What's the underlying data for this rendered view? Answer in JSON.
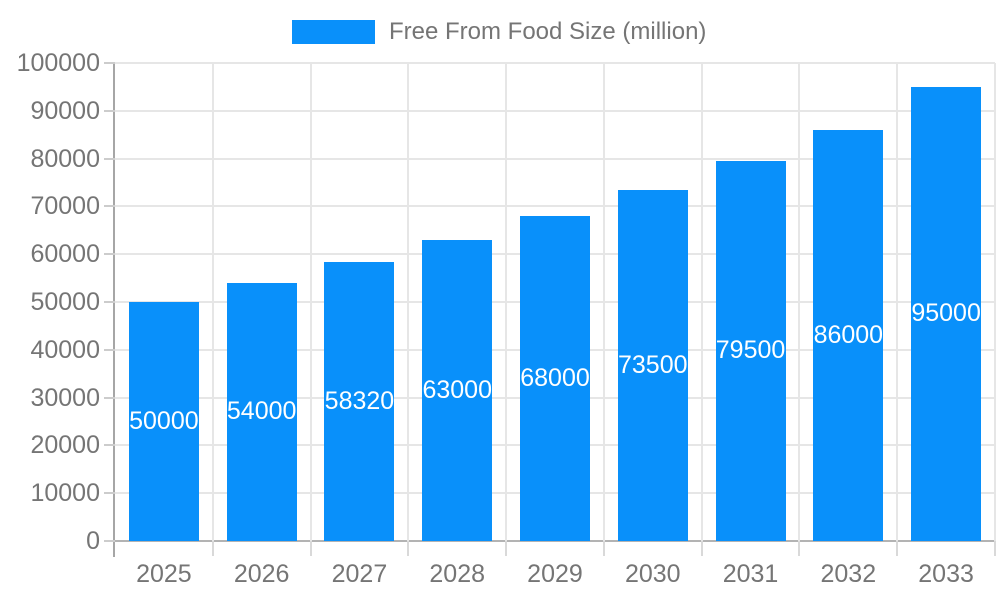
{
  "chart_data": {
    "type": "bar",
    "title": "Free From Food Size (million)",
    "legend": {
      "label": "Free From Food Size (million)",
      "position": "top"
    },
    "categories": [
      "2025",
      "2026",
      "2027",
      "2028",
      "2029",
      "2030",
      "2031",
      "2032",
      "2033"
    ],
    "values": [
      50000,
      54000,
      58320,
      63000,
      68000,
      73500,
      79500,
      86000,
      95000
    ],
    "xlabel": "",
    "ylabel": "",
    "ylim": [
      0,
      100000
    ],
    "yticks": [
      "0",
      "10000",
      "20000",
      "30000",
      "40000",
      "50000",
      "60000",
      "70000",
      "80000",
      "90000",
      "100000"
    ],
    "grid": true,
    "colors": {
      "bar": "#0990fa",
      "bar_label": "#ffffff",
      "grid": "#e6e6e6",
      "axis_text": "#757575",
      "axis_line": "#a6a6a6"
    }
  }
}
